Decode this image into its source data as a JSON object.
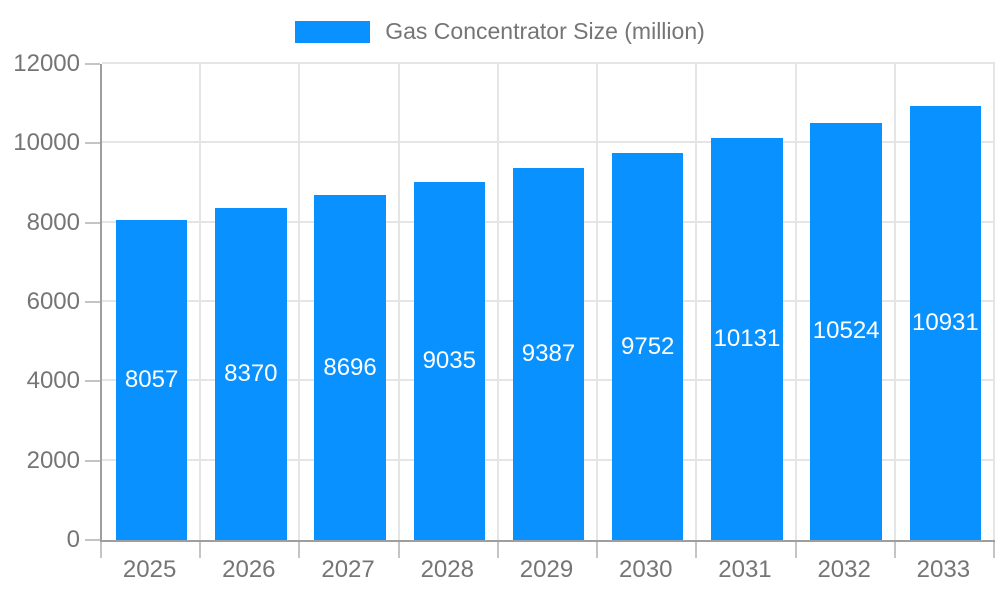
{
  "chart_data": {
    "type": "bar",
    "title": "Gas Concentrator Size (million)",
    "categories": [
      "2025",
      "2026",
      "2027",
      "2028",
      "2029",
      "2030",
      "2031",
      "2032",
      "2033"
    ],
    "values": [
      8057,
      8370,
      8696,
      9035,
      9387,
      9752,
      10131,
      10524,
      10931
    ],
    "xlabel": "",
    "ylabel": "",
    "ylim": [
      0,
      12000
    ],
    "yticks": [
      0,
      2000,
      4000,
      6000,
      8000,
      10000,
      12000
    ],
    "grid": true,
    "legend_position": "top-center",
    "bar_color": "#0991ff",
    "bar_label_color": "#ffffff",
    "axis_text_color": "#757575"
  },
  "legend": {
    "label": "Gas Concentrator Size (million)"
  }
}
